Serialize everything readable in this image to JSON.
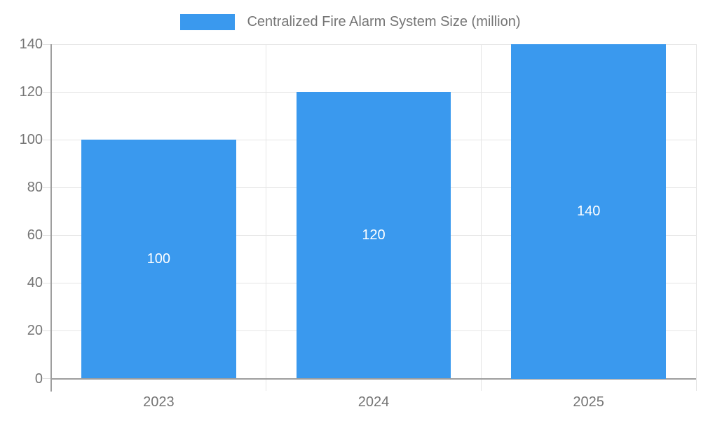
{
  "legend": {
    "label": "Centralized Fire Alarm System Size (million)"
  },
  "chart_data": {
    "type": "bar",
    "title": "Centralized Fire Alarm System Size (million)",
    "categories": [
      "2023",
      "2024",
      "2025"
    ],
    "series": [
      {
        "name": "Centralized Fire Alarm System Size (million)",
        "values": [
          100,
          120,
          140
        ]
      }
    ],
    "data_labels": [
      "100",
      "120",
      "140"
    ],
    "xlabel": "",
    "ylabel": "",
    "ylim": [
      0,
      140
    ],
    "yticks": [
      0,
      20,
      40,
      60,
      80,
      100,
      120,
      140
    ],
    "grid": "on",
    "legend_position": "top-center",
    "data_label_position": "inside-center",
    "colors": {
      "bar": "#3A99EE",
      "bar_label_text": "#ffffff",
      "axis_text": "#757575",
      "legend_text": "#757575",
      "gridline": "#e6e6e6",
      "tick": "#e0e0e0",
      "axis_line": "#9e9e9e",
      "background": "#ffffff"
    }
  }
}
